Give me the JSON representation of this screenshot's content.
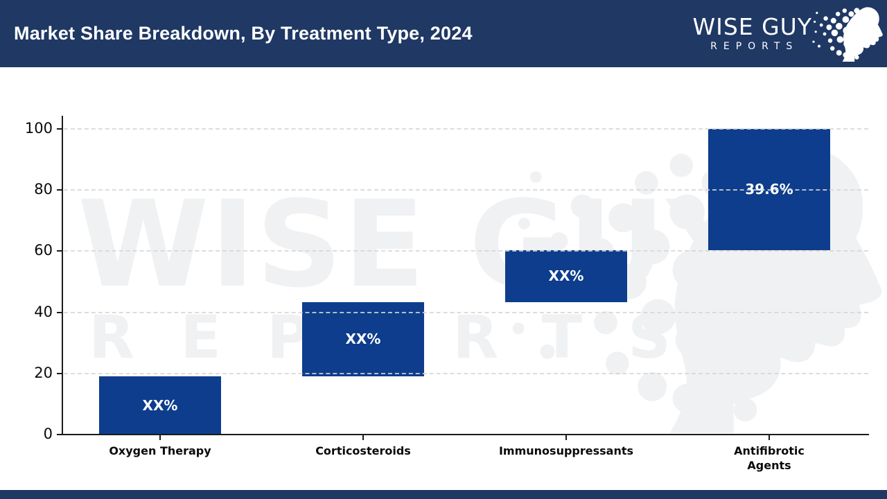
{
  "header": {
    "title": "Market Share Breakdown, By Treatment Type, 2024",
    "logo": {
      "name": "WISE GUY",
      "tagline": "REPORTS"
    }
  },
  "watermark": {
    "line1": "WISE GUY",
    "line2": "REPORTS"
  },
  "chart_data": {
    "type": "bar",
    "subtype": "waterfall",
    "title": "Market Share Breakdown, By Treatment Type, 2024",
    "xlabel": "",
    "ylabel": "",
    "categories": [
      "Oxygen Therapy",
      "Corticosteroids",
      "Immunosuppressants",
      "Antifibrotic Agents"
    ],
    "tick_labels": [
      "Oxygen Therapy",
      "Corticosteroids",
      "Immunosuppressants",
      "Antifibrotic\nAgents"
    ],
    "segments": [
      {
        "category": "Oxygen Therapy",
        "start": 0,
        "end": 19.1,
        "value_est": 19.1,
        "label": "XX%"
      },
      {
        "category": "Corticosteroids",
        "start": 19.1,
        "end": 43.4,
        "value_est": 24.3,
        "label": "XX%"
      },
      {
        "category": "Immunosuppressants",
        "start": 43.4,
        "end": 60.4,
        "value_est": 17.0,
        "label": "XX%"
      },
      {
        "category": "Antifibrotic Agents",
        "start": 60.4,
        "end": 100.0,
        "value_est": 39.6,
        "label": "39.6%"
      }
    ],
    "yticks": [
      0,
      20,
      40,
      60,
      80,
      100
    ],
    "ylim": [
      0,
      104
    ],
    "grid": "horizontal-dashed",
    "legend": "none",
    "colors": {
      "bar": "#0d3d8c",
      "header_band": "#1f3864",
      "gridline": "#d6d6d6",
      "axis": "#1a1a1a",
      "bar_label": "#ffffff",
      "watermark": "#f0f1f3"
    }
  }
}
